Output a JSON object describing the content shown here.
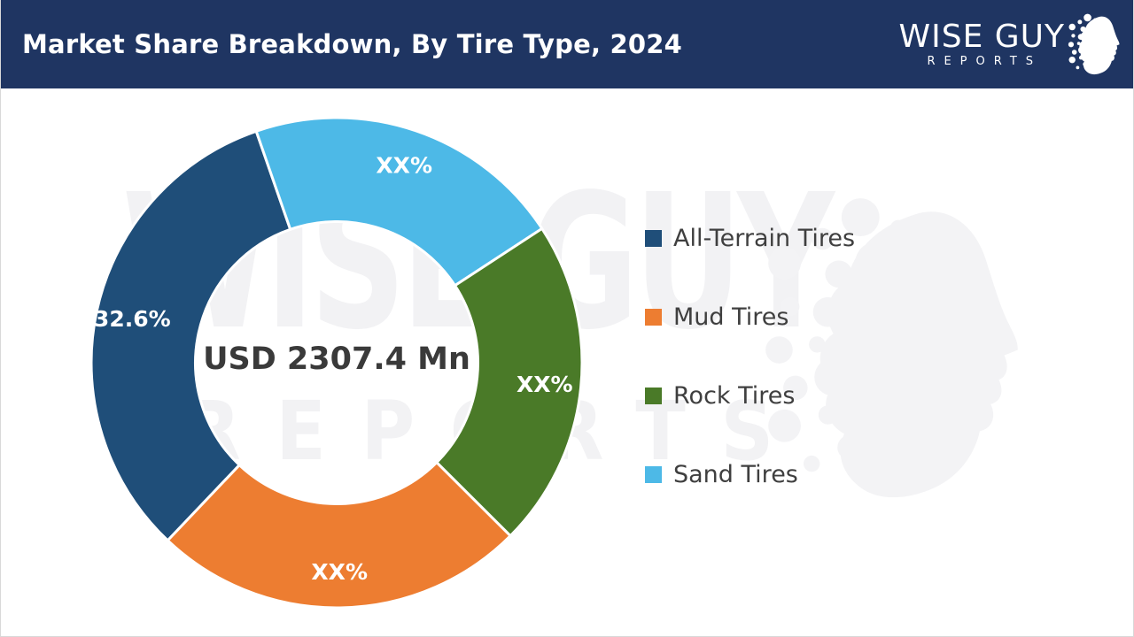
{
  "header": {
    "title": "Market Share Breakdown, By Tire Type, 2024",
    "logo": {
      "name": "WISE GUY",
      "tagline": "REPORTS"
    }
  },
  "watermark": {
    "word1": "WISE GUY",
    "word2": "REPORTS"
  },
  "chart_data": {
    "type": "pie",
    "subtype": "donut",
    "title": "Market Share Breakdown, By Tire Type, 2024",
    "center_label": "USD 2307.4 Mn",
    "unit": "%",
    "legend_position": "right",
    "grid": false,
    "inner_radius_ratio": 0.576,
    "start_angle_deg_clockwise_from_top": 223.5,
    "draw_order_clockwise": [
      "All-Terrain Tires",
      "Sand Tires",
      "Rock Tires",
      "Mud Tires"
    ],
    "segments": [
      {
        "label": "All-Terrain Tires",
        "display_label": "32.6%",
        "value_pct": 32.6,
        "value_shown": true,
        "color": "#1f4e79"
      },
      {
        "label": "Mud Tires",
        "display_label": "XX%",
        "value_pct": 24.6,
        "value_shown": false,
        "color": "#ed7d31"
      },
      {
        "label": "Rock Tires",
        "display_label": "XX%",
        "value_pct": 21.7,
        "value_shown": false,
        "color": "#4a7a28"
      },
      {
        "label": "Sand Tires",
        "display_label": "XX%",
        "value_pct": 21.1,
        "value_shown": false,
        "color": "#4db9e7"
      }
    ]
  },
  "colors": {
    "header_bg": "#1f3562",
    "page_bg": "#ffffff",
    "border": "#d9d9d9",
    "legend_text": "#3f3f3f",
    "center_text": "#3a3a3a",
    "watermark": "#f2f2f4"
  }
}
